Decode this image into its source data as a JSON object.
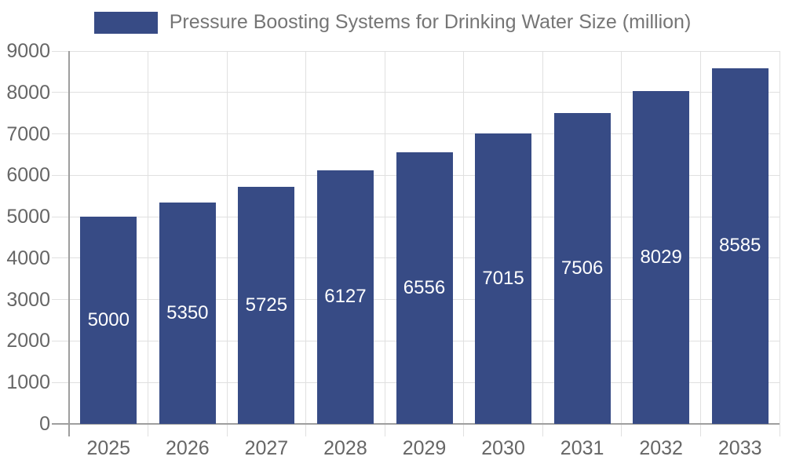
{
  "legend": {
    "label": "Pressure Boosting Systems for Drinking Water Size (million)",
    "position": "top-center"
  },
  "chart_data": {
    "type": "bar",
    "title": "Pressure Boosting Systems for Drinking Water Size (million)",
    "categories": [
      "2025",
      "2026",
      "2027",
      "2028",
      "2029",
      "2030",
      "2031",
      "2032",
      "2033"
    ],
    "values": [
      5000,
      5350,
      5725,
      6127,
      6556,
      7015,
      7506,
      8029,
      8585
    ],
    "xlabel": "",
    "ylabel": "",
    "ylim": [
      0,
      9000
    ],
    "y_ticks": [
      0,
      1000,
      2000,
      3000,
      4000,
      5000,
      6000,
      7000,
      8000,
      9000
    ],
    "grid": true,
    "value_labels": "centered-inside-bars",
    "legend_position": "top",
    "colors": {
      "bar": "#374B85",
      "bar_label": "#ffffff",
      "axis_text": "#666666",
      "title_text": "#757575",
      "grid": "#e0e0e0",
      "axis_line": "#9e9e9e",
      "background": "#ffffff"
    }
  }
}
